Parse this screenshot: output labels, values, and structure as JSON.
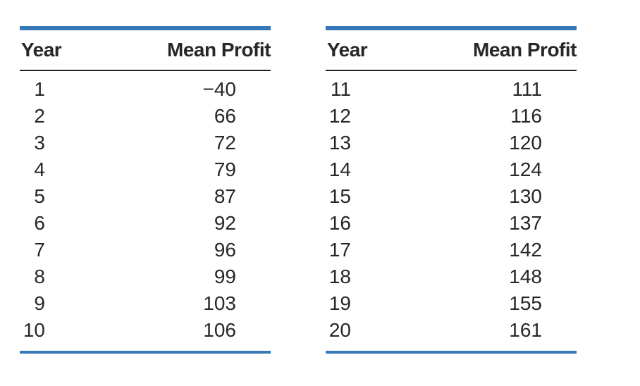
{
  "colors": {
    "accent_blue": "#3578ba",
    "rule_black": "#232021",
    "text": "#29262a",
    "background": "#ffffff"
  },
  "tables": [
    {
      "header": {
        "year": "Year",
        "profit": "Mean Profit"
      },
      "rows": [
        {
          "year": "1",
          "profit": "−40"
        },
        {
          "year": "2",
          "profit": "66"
        },
        {
          "year": "3",
          "profit": "72"
        },
        {
          "year": "4",
          "profit": "79"
        },
        {
          "year": "5",
          "profit": "87"
        },
        {
          "year": "6",
          "profit": "92"
        },
        {
          "year": "7",
          "profit": "96"
        },
        {
          "year": "8",
          "profit": "99"
        },
        {
          "year": "9",
          "profit": "103"
        },
        {
          "year": "10",
          "profit": "106"
        }
      ]
    },
    {
      "header": {
        "year": "Year",
        "profit": "Mean Profit"
      },
      "rows": [
        {
          "year": "11",
          "profit": "111"
        },
        {
          "year": "12",
          "profit": "116"
        },
        {
          "year": "13",
          "profit": "120"
        },
        {
          "year": "14",
          "profit": "124"
        },
        {
          "year": "15",
          "profit": "130"
        },
        {
          "year": "16",
          "profit": "137"
        },
        {
          "year": "17",
          "profit": "142"
        },
        {
          "year": "18",
          "profit": "148"
        },
        {
          "year": "19",
          "profit": "155"
        },
        {
          "year": "20",
          "profit": "161"
        }
      ]
    }
  ],
  "chart_data": [
    {
      "type": "table",
      "title": "",
      "columns": [
        "Year",
        "Mean Profit"
      ],
      "rows": [
        [
          1,
          -40
        ],
        [
          2,
          66
        ],
        [
          3,
          72
        ],
        [
          4,
          79
        ],
        [
          5,
          87
        ],
        [
          6,
          92
        ],
        [
          7,
          96
        ],
        [
          8,
          99
        ],
        [
          9,
          103
        ],
        [
          10,
          106
        ]
      ]
    },
    {
      "type": "table",
      "title": "",
      "columns": [
        "Year",
        "Mean Profit"
      ],
      "rows": [
        [
          11,
          111
        ],
        [
          12,
          116
        ],
        [
          13,
          120
        ],
        [
          14,
          124
        ],
        [
          15,
          130
        ],
        [
          16,
          137
        ],
        [
          17,
          142
        ],
        [
          18,
          148
        ],
        [
          19,
          155
        ],
        [
          20,
          161
        ]
      ]
    }
  ]
}
